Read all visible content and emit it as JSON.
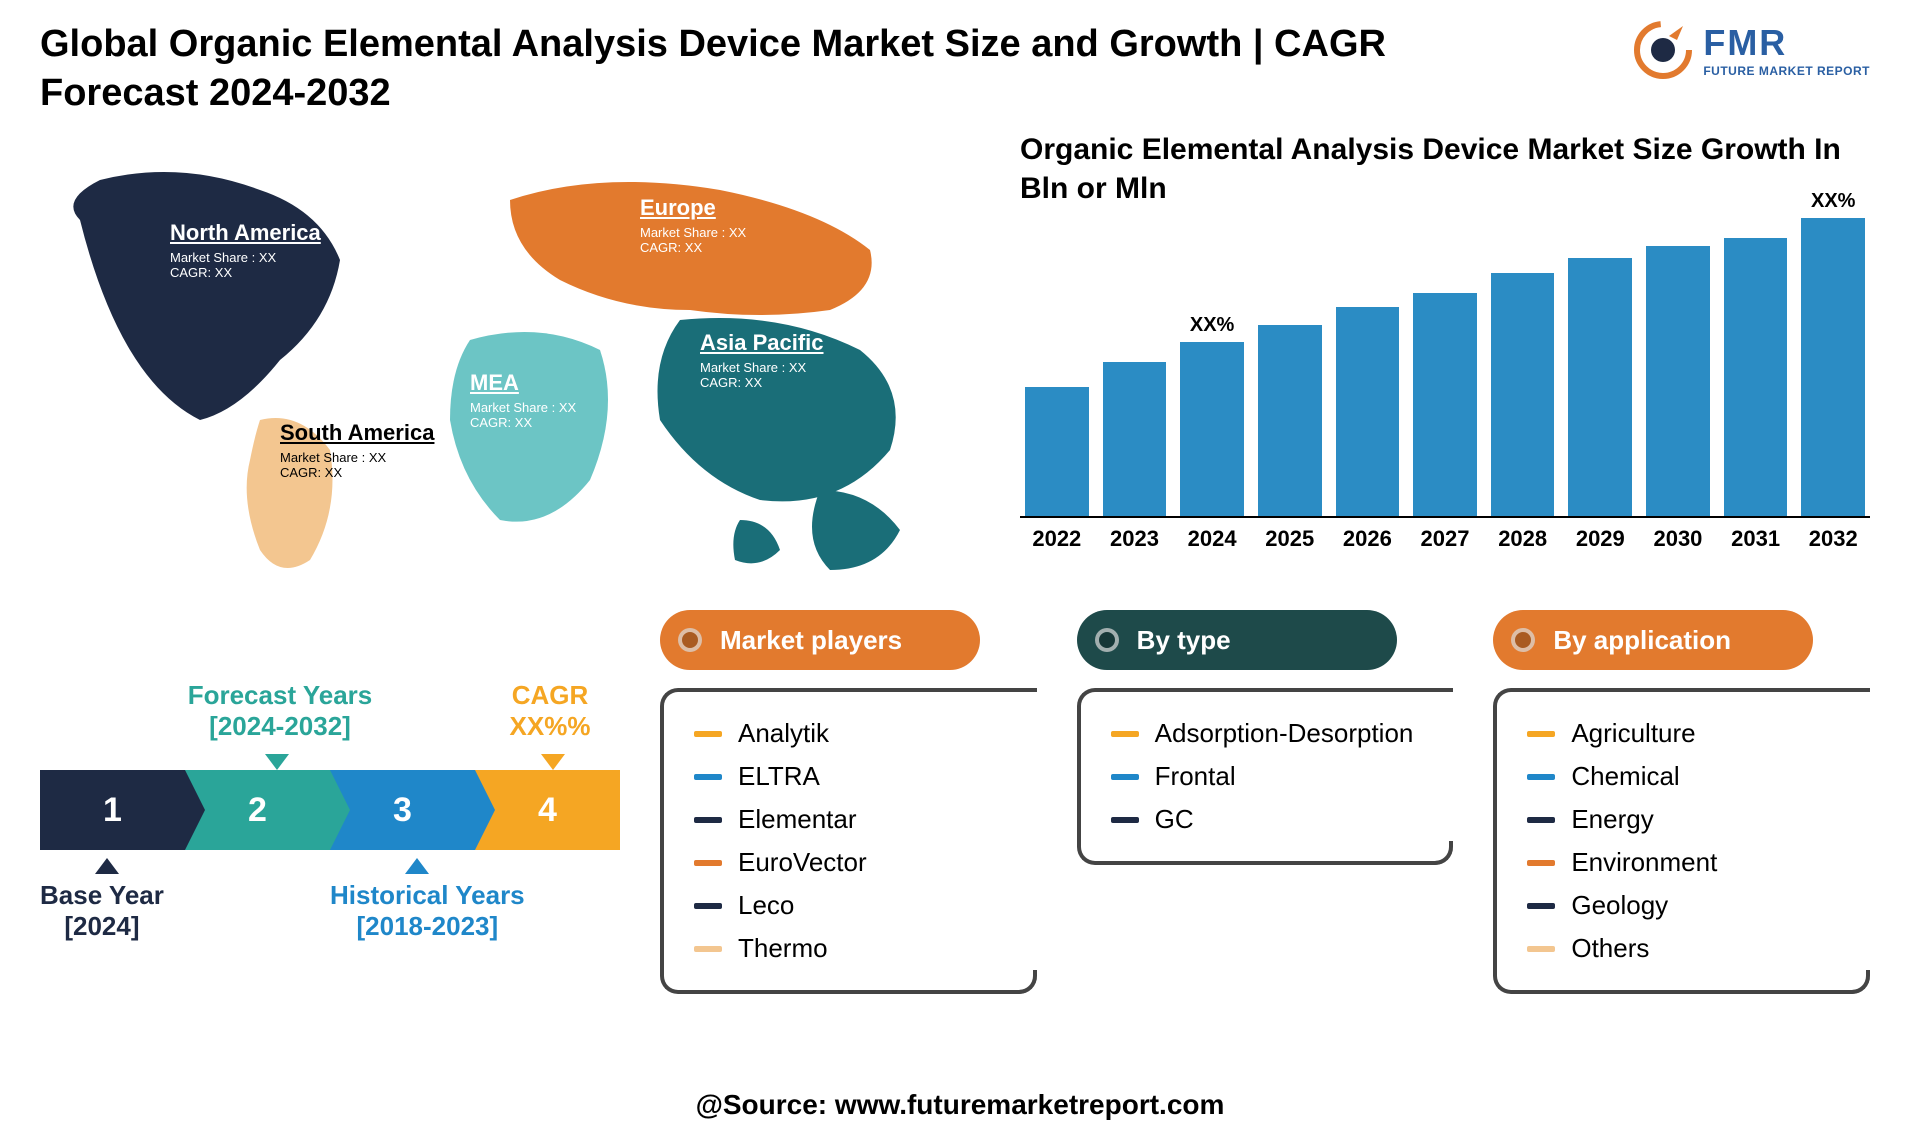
{
  "title_line1": "Global Organic Elemental Analysis Device Market Size and Growth | CAGR",
  "title_line2": " Forecast 2024-2032",
  "logo": {
    "main": "FMR",
    "sub": "FUTURE MARKET REPORT"
  },
  "map": {
    "regions": {
      "north_america": {
        "name": "North America",
        "share": "Market Share : XX",
        "cagr": "CAGR: XX",
        "color": "#1e2a44"
      },
      "south_america": {
        "name": "South America",
        "share": "Market Share : XX",
        "cagr": "CAGR: XX",
        "color": "#f3c690"
      },
      "europe": {
        "name": "Europe",
        "share": "Market Share : XX",
        "cagr": "CAGR: XX",
        "color": "#e27a2e"
      },
      "mea": {
        "name": "MEA",
        "share": "Market Share : XX",
        "cagr": "CAGR: XX",
        "color": "#6cc5c5"
      },
      "asia_pacific": {
        "name": "Asia Pacific",
        "share": "Market Share : XX",
        "cagr": "CAGR: XX",
        "color": "#1a6e78"
      }
    }
  },
  "chart": {
    "title": "Organic Elemental Analysis Device Market Size Growth In\nBln or Mln",
    "type": "bar",
    "categories": [
      "2022",
      "2023",
      "2024",
      "2025",
      "2026",
      "2027",
      "2028",
      "2029",
      "2030",
      "2031",
      "2032"
    ],
    "values": [
      130,
      155,
      175,
      192,
      210,
      225,
      245,
      260,
      272,
      280,
      300
    ],
    "bar_color": "#2b8cc4",
    "ylim": [
      0,
      300
    ],
    "label_2024": "XX%",
    "label_2032": "XX%",
    "axis_color": "#000000",
    "label_fontsize": 22
  },
  "timeline": {
    "forecast_label": "Forecast Years",
    "forecast_range": "[2024-2032]",
    "forecast_color": "#2aa599",
    "cagr_label": "CAGR",
    "cagr_value": "XX%%",
    "cagr_color": "#f5a623",
    "base_label": "Base Year",
    "base_range": "[2024]",
    "base_color": "#1e2a44",
    "hist_label": "Historical Years",
    "hist_range": "[2018-2023]",
    "hist_color": "#1f87c9",
    "segments": [
      "1",
      "2",
      "3",
      "4"
    ],
    "segment_colors": [
      "#1e2a44",
      "#2aa599",
      "#1f87c9",
      "#f5a623"
    ]
  },
  "categories": {
    "market_players": {
      "title": "Market players",
      "pill_color": "#e27a2e",
      "items": [
        {
          "label": "Analytik",
          "color": "#f5a623"
        },
        {
          "label": "ELTRA",
          "color": "#1f87c9"
        },
        {
          "label": "Elementar",
          "color": "#1e2a44"
        },
        {
          "label": "EuroVector",
          "color": "#e27a2e"
        },
        {
          "label": "Leco",
          "color": "#1e2a44"
        },
        {
          "label": "Thermo",
          "color": "#f3c690"
        }
      ]
    },
    "by_type": {
      "title": "By type",
      "pill_color": "#1e4a4a",
      "items": [
        {
          "label": "Adsorption-Desorption",
          "color": "#f5a623"
        },
        {
          "label": "Frontal",
          "color": "#1f87c9"
        },
        {
          "label": "GC",
          "color": "#1e2a44"
        }
      ]
    },
    "by_application": {
      "title": "By application",
      "pill_color": "#e27a2e",
      "items": [
        {
          "label": "Agriculture",
          "color": "#f5a623"
        },
        {
          "label": "Chemical",
          "color": "#1f87c9"
        },
        {
          "label": "Energy",
          "color": "#1e2a44"
        },
        {
          "label": "Environment",
          "color": "#e27a2e"
        },
        {
          "label": "Geology",
          "color": "#1e2a44"
        },
        {
          "label": "Others",
          "color": "#f3c690"
        }
      ]
    }
  },
  "source": "@Source: www.futuremarketreport.com"
}
